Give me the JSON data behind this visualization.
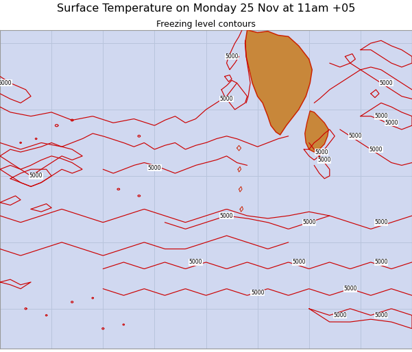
{
  "title": "Surface Temperature on Monday 25 Nov at 11am +05",
  "subtitle": "Freezing level contours",
  "title_fontsize": 11.5,
  "subtitle_fontsize": 9,
  "map_bg_color": "#d0d8f0",
  "land_color": "#c8873a",
  "land_edge_color": "#cc2200",
  "contour_color": "#cc0000",
  "grid_color": "#b8c4dc",
  "title_bg": "#ffffff",
  "fig_width": 6.01,
  "fig_height": 5.14,
  "dpi": 100,
  "xlim": [
    50,
    90
  ],
  "ylim": [
    -8,
    16
  ],
  "grid_lons": [
    55,
    60,
    65,
    70,
    75,
    80,
    85
  ],
  "grid_lats": [
    -5,
    0,
    5,
    10,
    15
  ]
}
